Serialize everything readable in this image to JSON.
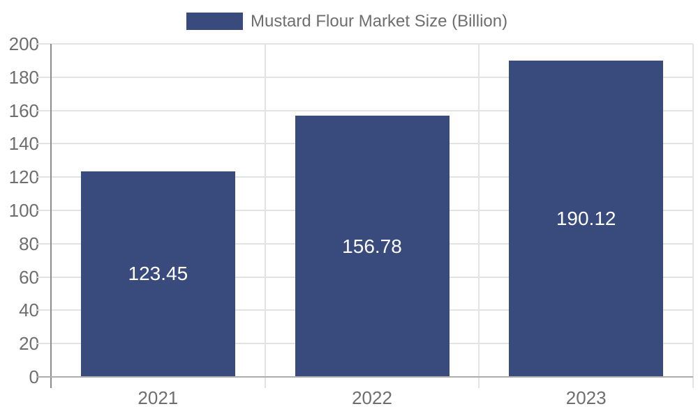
{
  "chart_data": {
    "type": "bar",
    "title": "Mustard Flour Market Size (Billion)",
    "categories": [
      "2021",
      "2022",
      "2023"
    ],
    "values": [
      123.45,
      156.78,
      190.12
    ],
    "value_labels": [
      "123.45",
      "156.78",
      "190.12"
    ],
    "xlabel": "",
    "ylabel": "",
    "ylim": [
      0,
      200
    ],
    "yticks": [
      0,
      20,
      40,
      60,
      80,
      100,
      120,
      140,
      160,
      180,
      200
    ],
    "grid": true,
    "legend_position": "top-center",
    "value_label_position": "center-of-bar",
    "colors": {
      "bar": "#394A7D",
      "value_label": "#FFFFFF",
      "axis_label": "#6E6E6E",
      "legend_label": "#6E6E6E",
      "gridline": "#E3E3E3",
      "y_axis_line": "#8C8C8C",
      "x_axis_line": "#ADADAD"
    }
  }
}
